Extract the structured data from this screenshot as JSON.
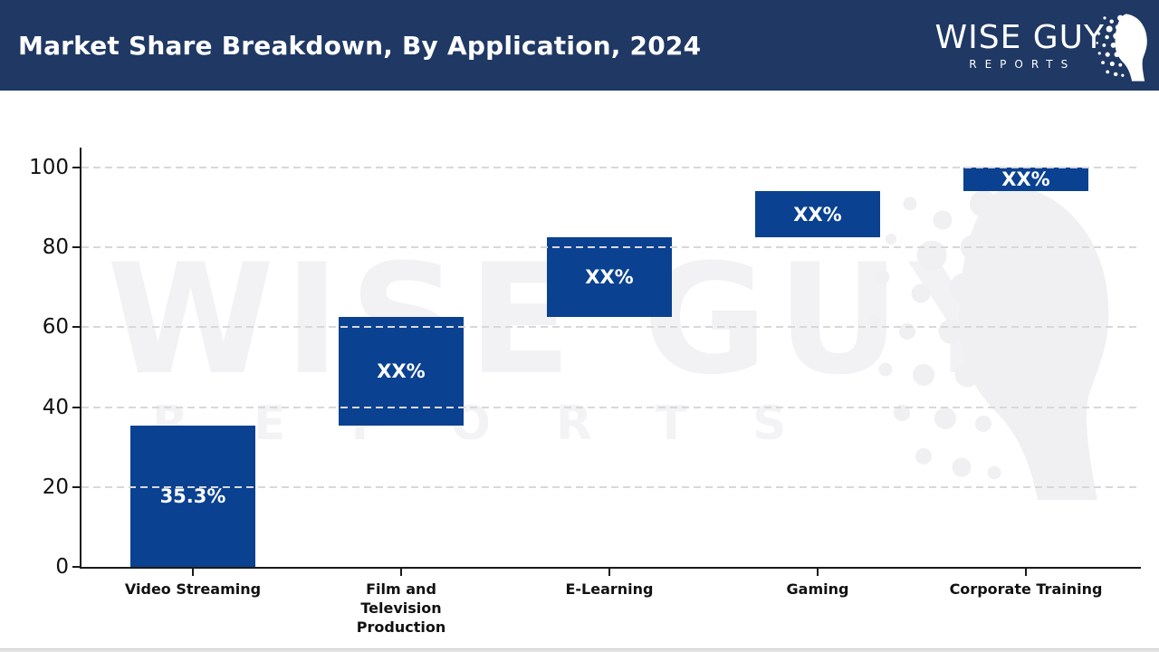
{
  "header": {
    "title": "Market Share Breakdown, By Application, 2024",
    "bg_color": "#1f3864",
    "logo": {
      "line1": "WISE GUY",
      "line2": "REPORTS"
    }
  },
  "chart_data": {
    "type": "bar",
    "subtype": "waterfall",
    "title": "Market Share Breakdown, By Application, 2024",
    "xlabel": "",
    "ylabel": "",
    "ylim": [
      0,
      105
    ],
    "y_ticks": [
      0,
      20,
      40,
      60,
      80,
      100
    ],
    "grid": "horizontal-dashed",
    "legend": "none",
    "bar_color": "#0a4191",
    "label_color": "#ffffff",
    "grid_color": "#d8d8d8",
    "axis_color": "#1a1a1a",
    "categories": [
      {
        "name": "Video Streaming",
        "lines": [
          "Video Streaming"
        ]
      },
      {
        "name": "Film and Television Production",
        "lines": [
          "Film and",
          "Television",
          "Production"
        ]
      },
      {
        "name": "E-Learning",
        "lines": [
          "E-Learning"
        ]
      },
      {
        "name": "Gaming",
        "lines": [
          "Gaming"
        ]
      },
      {
        "name": "Corporate Training",
        "lines": [
          "Corporate Training"
        ]
      }
    ],
    "segments": [
      {
        "category": "Video Streaming",
        "start": 0,
        "end": 35.3,
        "label": "35.3%"
      },
      {
        "category": "Film and Television Production",
        "start": 35.3,
        "end": 62.7,
        "label": "XX%"
      },
      {
        "category": "E-Learning",
        "start": 62.7,
        "end": 82.5,
        "label": "XX%"
      },
      {
        "category": "Gaming",
        "start": 82.5,
        "end": 94.1,
        "label": "XX%"
      },
      {
        "category": "Corporate Training",
        "start": 94.1,
        "end": 100,
        "label": "XX%"
      }
    ],
    "watermark": {
      "line1": "WISE GUY",
      "line2": "REPORTS"
    }
  }
}
